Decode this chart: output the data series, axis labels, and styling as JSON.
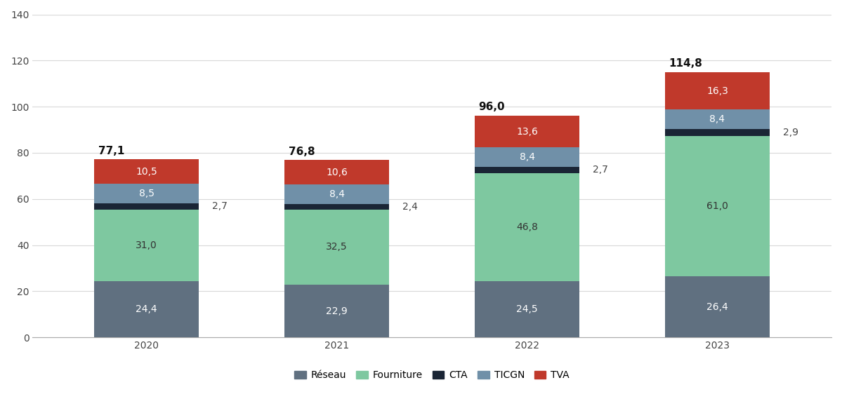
{
  "years": [
    "2020",
    "2021",
    "2022",
    "2023"
  ],
  "reseau": [
    24.4,
    22.9,
    24.5,
    26.4
  ],
  "fourniture": [
    31.0,
    32.5,
    46.8,
    61.0
  ],
  "cta": [
    2.7,
    2.4,
    2.7,
    2.9
  ],
  "ticgn": [
    8.5,
    8.4,
    8.4,
    8.4
  ],
  "tva": [
    10.5,
    10.6,
    13.6,
    16.3
  ],
  "totals": [
    "77,1",
    "76,8",
    "96,0",
    "114,8"
  ],
  "reseau_labels": [
    "24,4",
    "22,9",
    "24,5",
    "26,4"
  ],
  "fourniture_labels": [
    "31,0",
    "32,5",
    "46,8",
    "61,0"
  ],
  "cta_labels": [
    "2,7",
    "2,4",
    "2,7",
    "2,9"
  ],
  "ticgn_labels": [
    "8,5",
    "8,4",
    "8,4",
    "8,4"
  ],
  "tva_labels": [
    "10,5",
    "10,6",
    "13,6",
    "16,3"
  ],
  "colors": {
    "reseau": "#607080",
    "fourniture": "#7ec8a0",
    "cta": "#1a2535",
    "ticgn": "#7090a8",
    "tva": "#c0392b"
  },
  "legend_labels": [
    "Réseau",
    "Fourniture",
    "CTA",
    "TICGN",
    "TVA"
  ],
  "ylim": [
    0,
    140
  ],
  "yticks": [
    0,
    20,
    40,
    60,
    80,
    100,
    120,
    140
  ],
  "bar_width": 0.55,
  "background_color": "#ffffff",
  "grid_color": "#d8d8d8",
  "fontsize_inside": 10,
  "fontsize_total": 11,
  "fontsize_cta": 10,
  "fontsize_axis": 10
}
